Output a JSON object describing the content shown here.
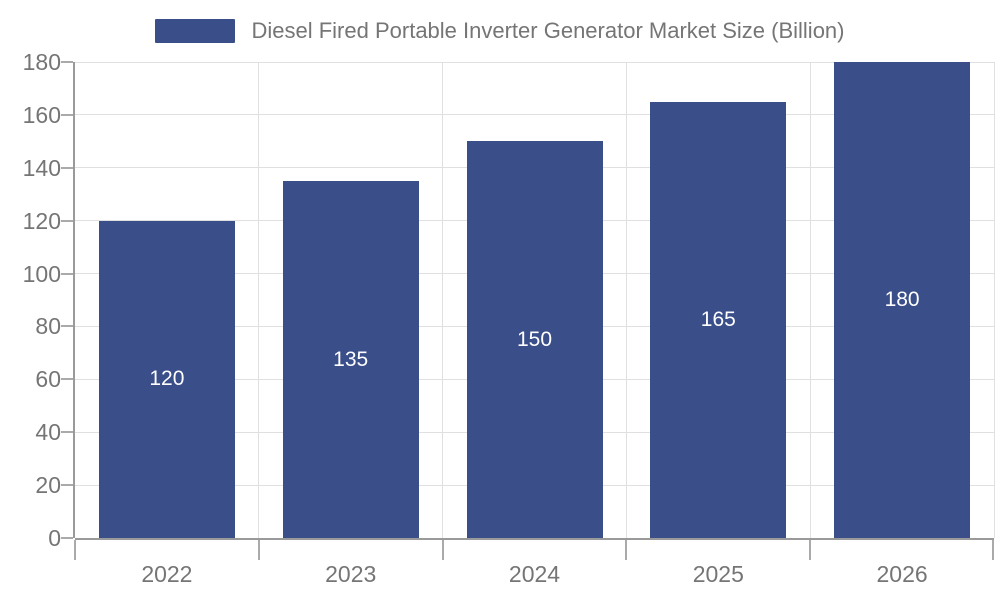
{
  "legend": {
    "label": "Diesel Fired Portable Inverter Generator Market Size (Billion)"
  },
  "colors": {
    "bar": "#3A4E8A",
    "grid": "#E0E0E0",
    "axis": "#9A9A9A",
    "tick": "#AAAAAA",
    "tick_text": "#757575",
    "value_label": "#FFFFFF",
    "background": "#FFFFFF"
  },
  "chart_data": {
    "type": "bar",
    "title": "Diesel Fired Portable Inverter Generator Market Size (Billion)",
    "categories": [
      "2022",
      "2023",
      "2024",
      "2025",
      "2026"
    ],
    "series": [
      {
        "name": "Diesel Fired Portable Inverter Generator Market Size (Billion)",
        "values": [
          120,
          135,
          150,
          165,
          180
        ]
      }
    ],
    "bar_labels": [
      "120",
      "135",
      "150",
      "165",
      "180"
    ],
    "xlabel": "",
    "ylabel": "",
    "ylim": [
      0,
      180
    ],
    "yticks": [
      0,
      20,
      40,
      60,
      80,
      100,
      120,
      140,
      160,
      180
    ],
    "grid": true,
    "legend_position": "top"
  }
}
